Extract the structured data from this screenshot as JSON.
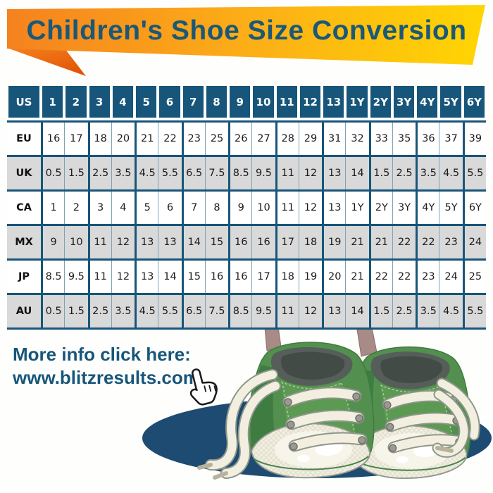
{
  "header": {
    "title": "Children's Shoe Size Conversion"
  },
  "chart_data": {
    "type": "table",
    "title": "Children's Shoe Size Conversion",
    "columns": [
      "US",
      "1",
      "2",
      "3",
      "4",
      "5",
      "6",
      "7",
      "8",
      "9",
      "10",
      "11",
      "12",
      "13",
      "1Y",
      "2Y",
      "3Y",
      "4Y",
      "5Y",
      "6Y"
    ],
    "rows": [
      {
        "label": "EU",
        "values": [
          "16",
          "17",
          "18",
          "20",
          "21",
          "22",
          "23",
          "25",
          "26",
          "27",
          "28",
          "29",
          "31",
          "32",
          "33",
          "35",
          "36",
          "37",
          "39"
        ]
      },
      {
        "label": "UK",
        "values": [
          "0.5",
          "1.5",
          "2.5",
          "3.5",
          "4.5",
          "5.5",
          "6.5",
          "7.5",
          "8.5",
          "9.5",
          "11",
          "12",
          "13",
          "14",
          "1.5",
          "2.5",
          "3.5",
          "4.5",
          "5.5"
        ]
      },
      {
        "label": "CA",
        "values": [
          "1",
          "2",
          "3",
          "4",
          "5",
          "6",
          "7",
          "8",
          "9",
          "10",
          "11",
          "12",
          "13",
          "1Y",
          "2Y",
          "3Y",
          "4Y",
          "5Y",
          "6Y"
        ]
      },
      {
        "label": "MX",
        "values": [
          "9",
          "10",
          "11",
          "12",
          "13",
          "13",
          "14",
          "15",
          "16",
          "16",
          "17",
          "18",
          "19",
          "21",
          "21",
          "22",
          "22",
          "23",
          "24"
        ]
      },
      {
        "label": "JP",
        "values": [
          "8.5",
          "9.5",
          "11",
          "12",
          "13",
          "14",
          "15",
          "16",
          "16",
          "17",
          "18",
          "19",
          "20",
          "21",
          "22",
          "22",
          "23",
          "24",
          "25"
        ]
      },
      {
        "label": "AU",
        "values": [
          "0.5",
          "1.5",
          "2.5",
          "3.5",
          "4.5",
          "5.5",
          "6.5",
          "7.5",
          "8.5",
          "9.5",
          "11",
          "12",
          "13",
          "14",
          "1.5",
          "2.5",
          "3.5",
          "4.5",
          "5.5"
        ]
      }
    ]
  },
  "footer": {
    "line1": "More info click here:",
    "url": "www.blitzresults.com"
  },
  "icons": {
    "cursor": "hand-pointer-icon"
  },
  "colors": {
    "primary_blue": "#17567A",
    "row_gray": "#D9D9D9",
    "thin_line_blue": "#7FA3B5",
    "ribbon_orange": "#F5821F",
    "ribbon_yellow": "#FFD503",
    "ribbon_fold": "#E8650F",
    "oval_navy": "#1D4B71",
    "shoe_green": "#53904F",
    "shoe_dark_green": "#3F7C41",
    "lace_cream": "#F2EFE1"
  }
}
